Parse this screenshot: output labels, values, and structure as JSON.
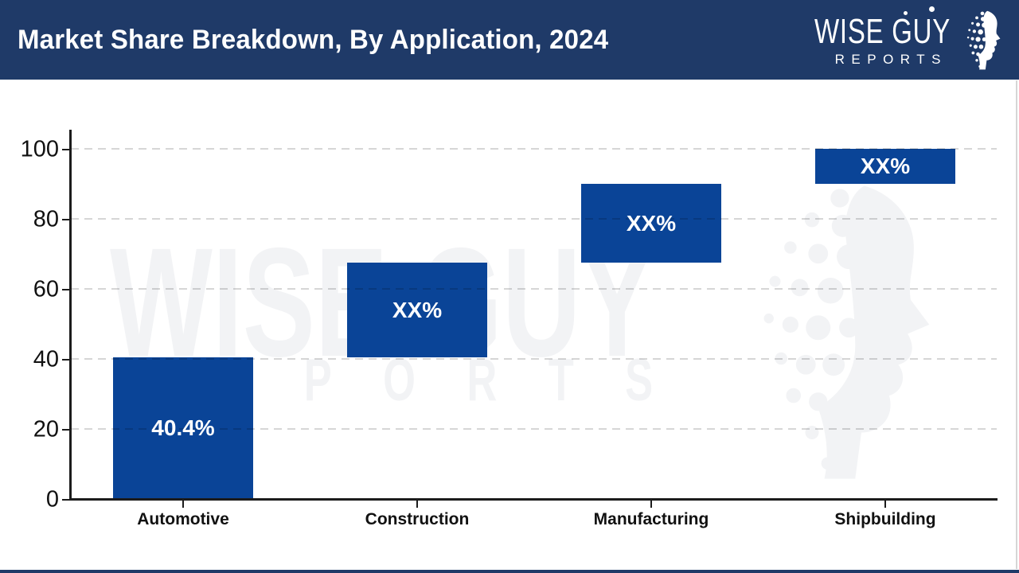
{
  "header": {
    "title": "Market Share Breakdown, By Application, 2024",
    "logo": {
      "brand": "WISE GUY",
      "sub": "REPORTS"
    }
  },
  "watermark": {
    "brand": "WISE GUY",
    "sub": "REPORTS"
  },
  "chart_data": {
    "type": "bar",
    "subtype": "waterfall",
    "title": "Market Share Breakdown, By Application, 2024",
    "categories": [
      "Automotive",
      "Construction",
      "Manufacturing",
      "Shipbuilding"
    ],
    "series": [
      {
        "name": "Market share (%)",
        "segments": [
          {
            "category": "Automotive",
            "start": 0,
            "end": 40.4,
            "label": "40.4%"
          },
          {
            "category": "Construction",
            "start": 40.4,
            "end": 67.5,
            "label": "XX%"
          },
          {
            "category": "Manufacturing",
            "start": 67.5,
            "end": 90,
            "label": "XX%"
          },
          {
            "category": "Shipbuilding",
            "start": 90,
            "end": 100,
            "label": "XX%"
          }
        ]
      }
    ],
    "xlabel": "",
    "ylabel": "",
    "ylim": [
      0,
      105
    ],
    "yticks": [
      "0",
      "20",
      "40",
      "60",
      "80",
      "100"
    ],
    "grid": "horizontal, dashed, drawn over bars",
    "legend": "none",
    "bar_color": "#0a4497",
    "bar_label_color": "#ffffff"
  },
  "colors": {
    "header_bg": "#1f3a68",
    "footer_bg": "#1f3a68",
    "axis": "#1c1c1c",
    "watermark": "#f2f3f5",
    "grid_overlay": "rgba(0,0,0,0.16)"
  }
}
